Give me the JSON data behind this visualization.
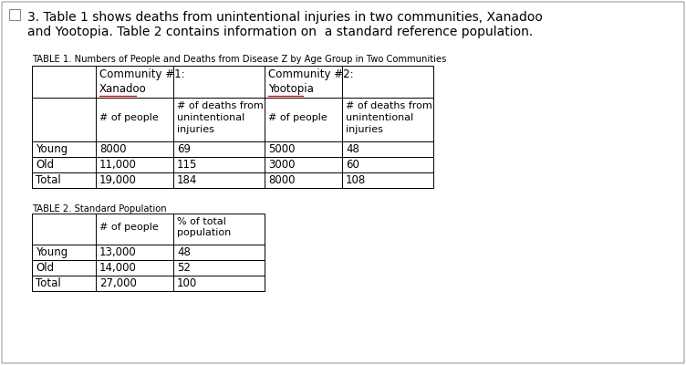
{
  "intro_line1": "3. Table 1 shows deaths from unintentional injuries in two communities, Xanadoo",
  "intro_line2": "and Yootopia. Table 2 contains information on  a standard reference population.",
  "table1_title": "TABLE 1. Numbers of People and Deaths from Disease Z by Age Group in Two Communities",
  "table2_title": "TABLE 2. Standard Population",
  "table1_data": [
    [
      "Young",
      "8000",
      "69",
      "5000",
      "48"
    ],
    [
      "Old",
      "11,000",
      "115",
      "3000",
      "60"
    ],
    [
      "Total",
      "19,000",
      "184",
      "8000",
      "108"
    ]
  ],
  "table2_data": [
    [
      "Young",
      "13,000",
      "48"
    ],
    [
      "Old",
      "14,000",
      "52"
    ],
    [
      "Total",
      "27,000",
      "100"
    ]
  ],
  "bg_color": "#ffffff",
  "text_color": "#000000",
  "underline_color": "#cc0000",
  "font_size": 8.5,
  "intro_font_size": 10.0
}
